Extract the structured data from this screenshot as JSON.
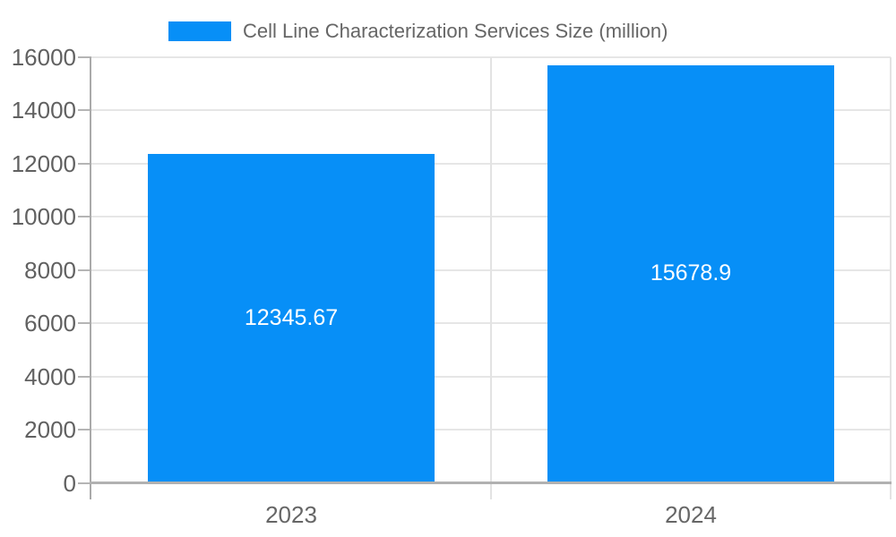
{
  "legend": {
    "label": "Cell Line Characterization Services Size (million)"
  },
  "colors": {
    "bar": "#078ff7",
    "data_label": "#ffffff",
    "grid_horizontal": "#e6e6e6",
    "grid_vertical": "#e3e3e3",
    "y_axis_line": "#aaaaaa",
    "x_axis_line": "#b1b1b1",
    "tick": "#b5b5b5",
    "tick_label_text": "#616161",
    "legend_text": "#666666",
    "background": "#ffffff"
  },
  "chart_data": {
    "type": "bar",
    "title": "Cell Line Characterization Services Size (million)",
    "categories": [
      "2023",
      "2024"
    ],
    "values": [
      12345.67,
      15678.9
    ],
    "value_labels": [
      "12345.67",
      "15678.9"
    ],
    "xlabel": "",
    "ylabel": "",
    "ylim": [
      0,
      16000
    ],
    "ytick_interval": 2000,
    "ytick_labels": [
      "0",
      "2000",
      "4000",
      "6000",
      "8000",
      "10000",
      "12000",
      "14000",
      "16000"
    ],
    "grid": true,
    "legend_position": "top",
    "data_labels_inside_bars": true
  }
}
